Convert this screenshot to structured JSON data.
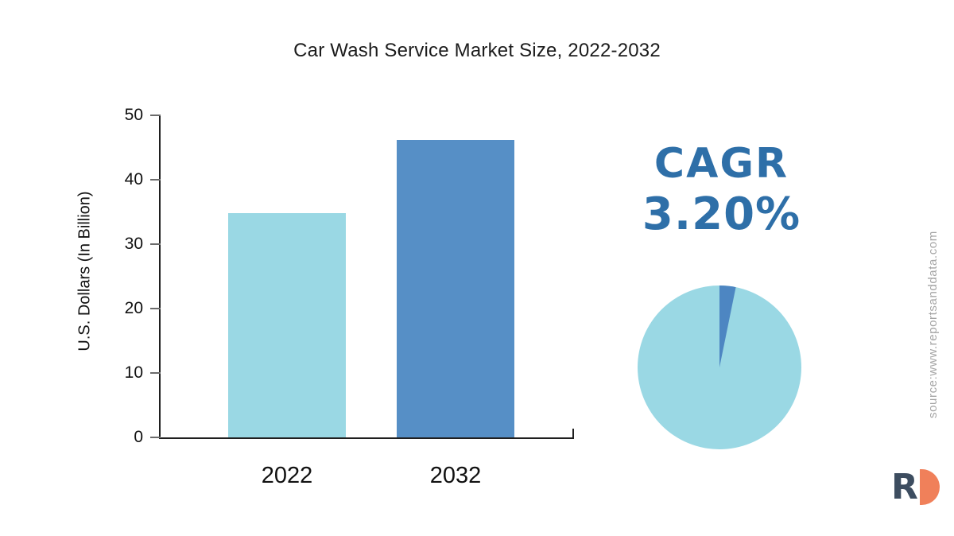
{
  "title": "Car Wash Service Market Size, 2022-2032",
  "chart_data": [
    {
      "type": "bar",
      "title": "Car Wash Service Market Size, 2022-2032",
      "categories": [
        "2022",
        "2032"
      ],
      "values": [
        34.8,
        46.2
      ],
      "xlabel": "",
      "ylabel": "U.S. Dollars (In Billion)",
      "ylim": [
        0,
        50
      ],
      "yticks": [
        0,
        10,
        20,
        30,
        40,
        50
      ],
      "bar_colors": [
        "#9ad8e4",
        "#568fc6"
      ],
      "grid": false,
      "legend": false
    },
    {
      "type": "pie",
      "title": "CAGR 3.20%",
      "slices": [
        {
          "name": "cagr-share",
          "value": 3.2,
          "color": "#4d86c2"
        },
        {
          "name": "remainder",
          "value": 96.8,
          "color": "#9ad8e4"
        }
      ],
      "start_angle_deg": 0,
      "legend_position": "none"
    }
  ],
  "cagr": {
    "label": "CAGR",
    "value": "3.20%",
    "color": "#2e6fa8"
  },
  "source_note": "source:www.reportsanddata.com",
  "logo": {
    "letter_r": "R",
    "r_color": "#3d4d60",
    "d_color": "#f0805a"
  }
}
